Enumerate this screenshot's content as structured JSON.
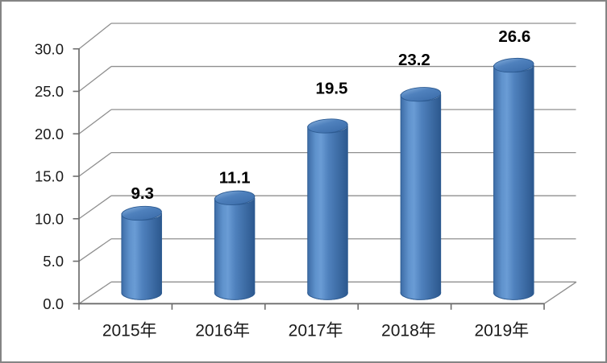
{
  "chart_data": {
    "type": "bar",
    "subtype": "3d-cylinder",
    "title": "",
    "xlabel": "",
    "ylabel": "",
    "categories": [
      "2015年",
      "2016年",
      "2017年",
      "2018年",
      "2019年"
    ],
    "values": [
      9.3,
      11.1,
      19.5,
      23.2,
      26.6
    ],
    "data_labels": [
      "9.3",
      "11.1",
      "19.5",
      "23.2",
      "26.6"
    ],
    "ylim": [
      0,
      30
    ],
    "y_tick_step": 5,
    "y_tick_labels": [
      "0.0",
      "5.0",
      "10.0",
      "15.0",
      "20.0",
      "25.0",
      "30.0"
    ],
    "grid": true,
    "legend": false,
    "colors": {
      "background": "#ffffff",
      "border": "#848484",
      "gridline": "#8f8f8f",
      "axis": "#6d6d6d",
      "tick_label": "#1a1a1a",
      "data_label": "#000000",
      "bar_fill": "#4f81bd",
      "bar_outline": "#2d5b92",
      "bar_gradient": [
        "#3d6ca6",
        "#5f92cc",
        "#6a9cd5",
        "#4f81bd",
        "#2c588e"
      ],
      "bar_top_gradient": [
        "#85afdd",
        "#4f81bd",
        "#3f70ad"
      ]
    }
  }
}
